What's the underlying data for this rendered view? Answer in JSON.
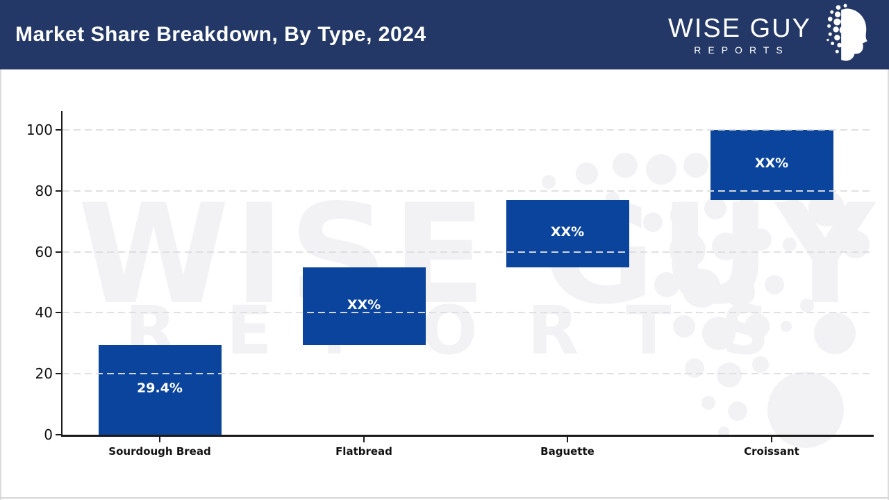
{
  "header": {
    "title": "Market Share Breakdown, By Type, 2024",
    "logo": {
      "line1": "WISE GUY",
      "line2": "REPORTS"
    }
  },
  "watermark": {
    "line1": "WISE GUY",
    "line2": "REPORTS"
  },
  "colors": {
    "header_bg": "#233866",
    "bar": "#0b449c",
    "bar_label": "#ffffff",
    "axis": "#1a1a1a",
    "grid": "#dedee0",
    "watermark": "#f2f2f4"
  },
  "chart_data": {
    "type": "bar",
    "subtype": "waterfall",
    "title": "Market Share Breakdown, By Type, 2024",
    "categories": [
      "Sourdough Bread",
      "Flatbread",
      "Baguette",
      "Croissant"
    ],
    "segments": [
      {
        "category": "Sourdough Bread",
        "start": 0,
        "end": 29.4,
        "label": "29.4%"
      },
      {
        "category": "Flatbread",
        "start": 29.4,
        "end": 55,
        "label": "XX%"
      },
      {
        "category": "Baguette",
        "start": 55,
        "end": 77,
        "label": "XX%"
      },
      {
        "category": "Croissant",
        "start": 77,
        "end": 100,
        "label": "XX%"
      }
    ],
    "xlabel": "",
    "ylabel": "",
    "ylim": [
      0,
      100
    ],
    "yticks": [
      0,
      20,
      40,
      60,
      80,
      100
    ],
    "grid": "dashed-horizontal",
    "legend": "none"
  }
}
